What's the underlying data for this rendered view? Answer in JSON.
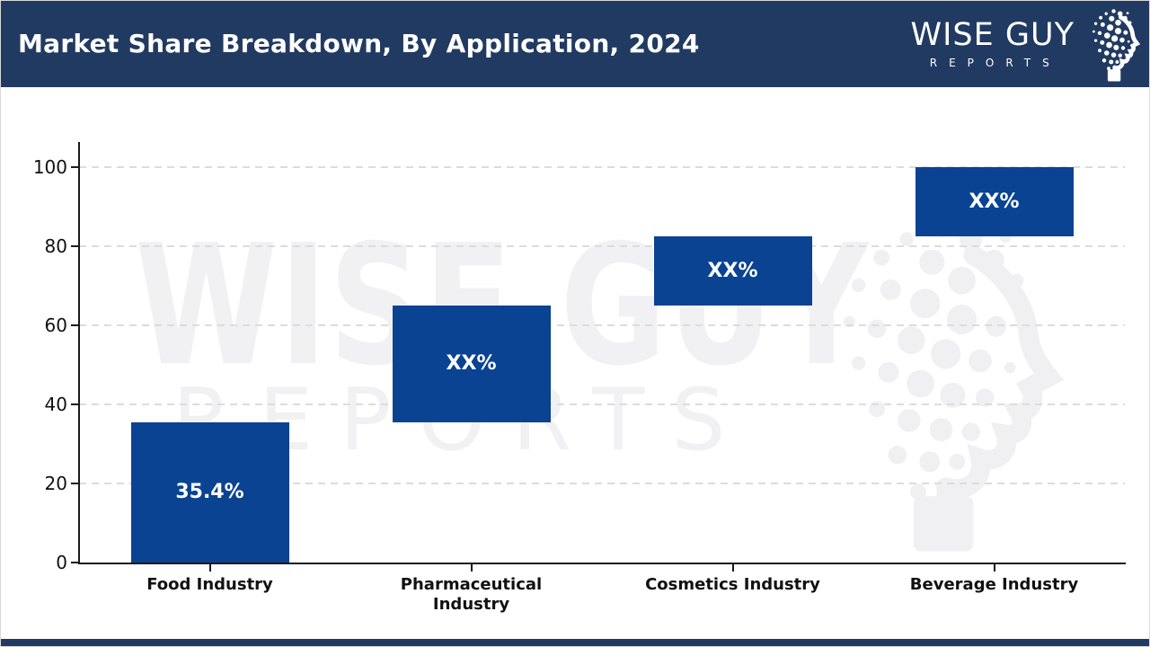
{
  "header": {
    "title": "Market Share Breakdown, By Application, 2024",
    "logo_line1": "WISE GUY",
    "logo_line2": "REPORTS",
    "bg_color": "#213a61"
  },
  "watermark": {
    "line1": "WISE GUY",
    "line2": "REPORTS"
  },
  "chart_data": {
    "type": "bar",
    "subtype": "stacked-waterfall",
    "title": "Market Share Breakdown, By Application, 2024",
    "categories": [
      "Food Industry",
      "Pharmaceutical Industry",
      "Cosmetics Industry",
      "Beverage Industry"
    ],
    "segments": [
      {
        "category": "Food Industry",
        "start": 0,
        "end": 35.4,
        "label": "35.4%"
      },
      {
        "category": "Pharmaceutical Industry",
        "start": 35.4,
        "end": 65,
        "label": "XX%"
      },
      {
        "category": "Cosmetics Industry",
        "start": 65,
        "end": 82.5,
        "label": "XX%"
      },
      {
        "category": "Beverage Industry",
        "start": 82.5,
        "end": 100,
        "label": "XX%"
      }
    ],
    "xlabel": "",
    "ylabel": "",
    "ylim": [
      0,
      100
    ],
    "yticks": [
      0,
      20,
      40,
      60,
      80,
      100
    ],
    "grid": "horizontal-dashed",
    "legend": "none",
    "bar_color": "#0a4391",
    "bar_label_color": "#ffffff",
    "axis_color": "#1a1a1a",
    "gridline_color": "#dcdcdc"
  }
}
